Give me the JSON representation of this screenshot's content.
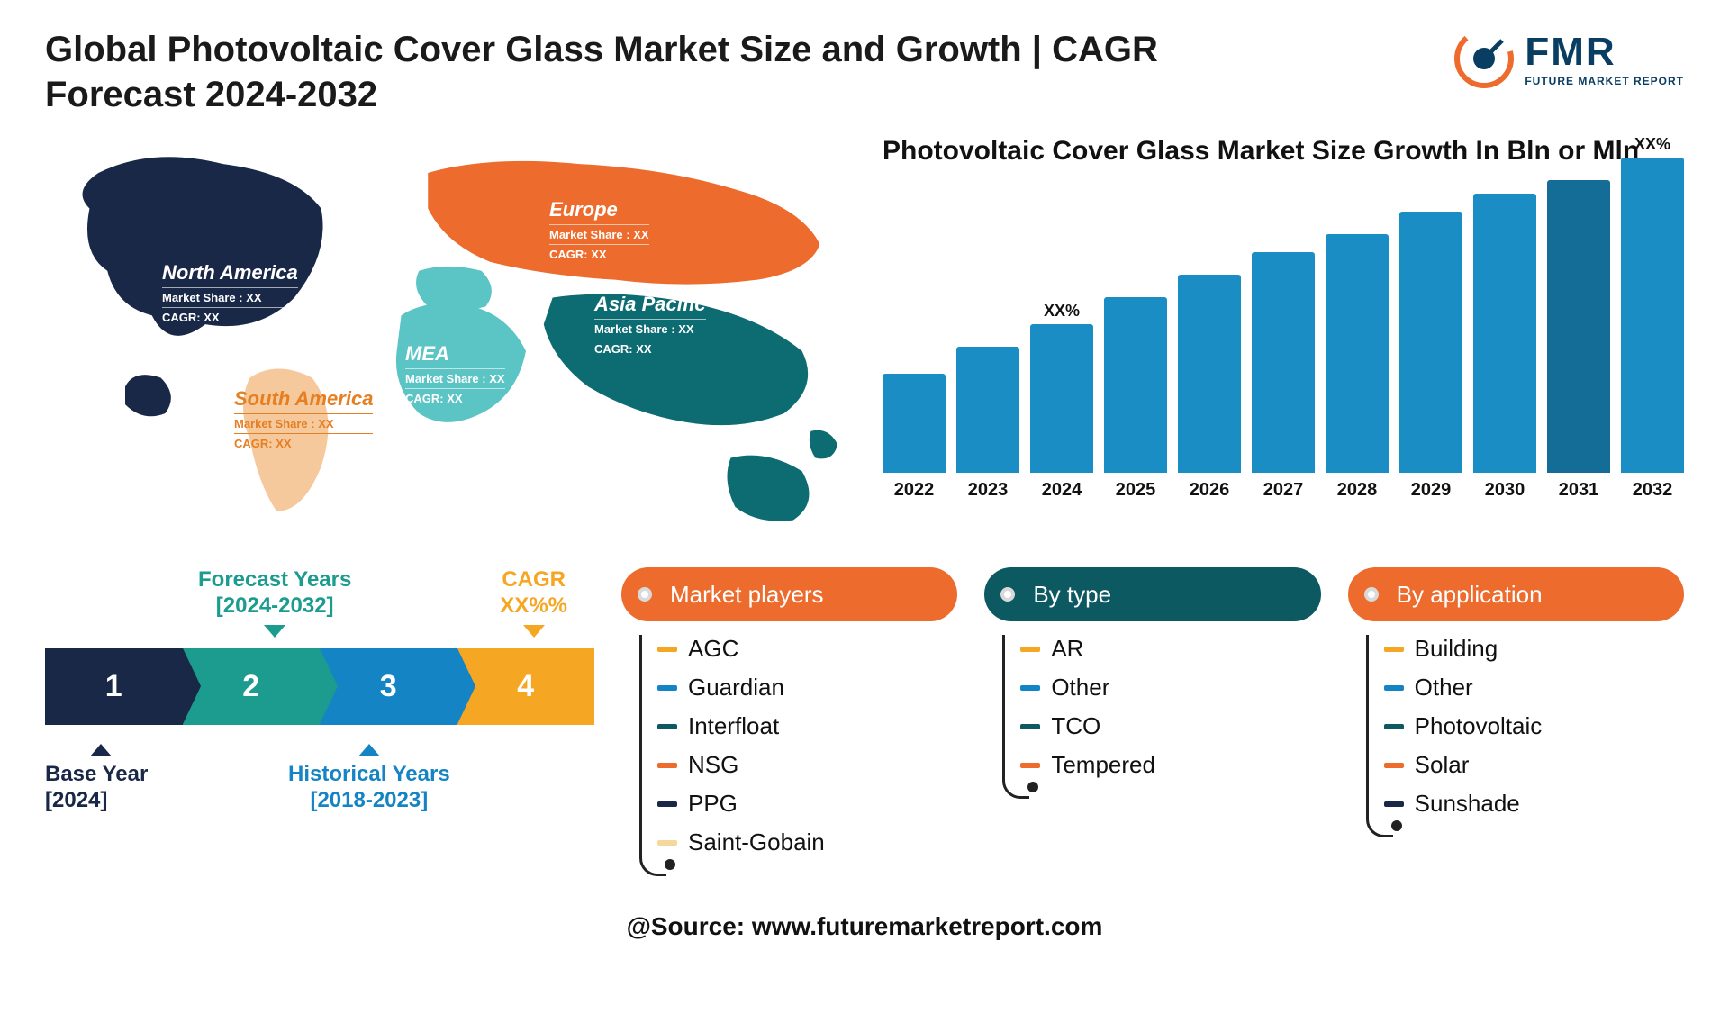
{
  "title": "Global Photovoltaic Cover Glass Market Size and Growth | CAGR Forecast 2024-2032",
  "logo": {
    "fmr": "FMR",
    "sub": "FUTURE MARKET REPORT"
  },
  "colors": {
    "navy": "#1a2848",
    "teal": "#1b9c8f",
    "cyan": "#5bc4c4",
    "blue": "#1584c4",
    "orange": "#ec6b2d",
    "amber": "#f5a623",
    "tealdark": "#0d5961",
    "bar": "#1a8dc4",
    "bardark": "#146d96",
    "text": "#111111"
  },
  "regions": {
    "na": {
      "name": "North America",
      "share": "Market Share : XX",
      "cagr": "CAGR: XX"
    },
    "sa": {
      "name": "South America",
      "share": "Market Share : XX",
      "cagr": "CAGR: XX"
    },
    "eu": {
      "name": "Europe",
      "share": "Market Share : XX",
      "cagr": "CAGR: XX"
    },
    "mea": {
      "name": "MEA",
      "share": "Market Share : XX",
      "cagr": "CAGR: XX"
    },
    "ap": {
      "name": "Asia Pacific",
      "share": "Market Share : XX",
      "cagr": "CAGR: XX"
    }
  },
  "chart": {
    "title": "Photovoltaic Cover Glass Market Size Growth In Bln or Mln",
    "years": [
      "2022",
      "2023",
      "2024",
      "2025",
      "2026",
      "2027",
      "2028",
      "2029",
      "2030",
      "2031",
      "2032"
    ],
    "heights": [
      110,
      140,
      165,
      195,
      220,
      245,
      265,
      290,
      310,
      325,
      350
    ],
    "bar_colors": [
      "#1a8dc4",
      "#1a8dc4",
      "#1a8dc4",
      "#1a8dc4",
      "#1a8dc4",
      "#1a8dc4",
      "#1a8dc4",
      "#1a8dc4",
      "#1a8dc4",
      "#146d96",
      "#1a8dc4"
    ],
    "pct1": {
      "label": "XX%",
      "index": 2
    },
    "pct2": {
      "label": "XX%",
      "index": 10
    }
  },
  "timeline": {
    "forecast": {
      "label": "Forecast Years",
      "period": "[2024-2032]",
      "color": "#1b9c8f"
    },
    "cagr": {
      "label": "CAGR",
      "value": "XX%%",
      "color": "#f5a623"
    },
    "base": {
      "label": "Base Year",
      "period": "[2024]",
      "color": "#1a2848"
    },
    "hist": {
      "label": "Historical Years",
      "period": "[2018-2023]",
      "color": "#1584c4"
    },
    "segs": [
      "1",
      "2",
      "3",
      "4"
    ]
  },
  "sections": {
    "players": {
      "title": "Market players",
      "pill_color": "#ec6b2d",
      "items": [
        {
          "c": "#f5a623",
          "t": "AGC"
        },
        {
          "c": "#1584c4",
          "t": "Guardian"
        },
        {
          "c": "#0d5961",
          "t": "Interfloat"
        },
        {
          "c": "#ec6b2d",
          "t": "NSG"
        },
        {
          "c": "#1a2848",
          "t": "PPG"
        },
        {
          "c": "#f5d89b",
          "t": "Saint-Gobain"
        }
      ]
    },
    "type": {
      "title": "By type",
      "pill_color": "#0d5961",
      "items": [
        {
          "c": "#f5a623",
          "t": "AR"
        },
        {
          "c": "#1584c4",
          "t": "Other"
        },
        {
          "c": "#0d5961",
          "t": "TCO"
        },
        {
          "c": "#ec6b2d",
          "t": "Tempered"
        }
      ]
    },
    "app": {
      "title": "By application",
      "pill_color": "#ec6b2d",
      "items": [
        {
          "c": "#f5a623",
          "t": "Building"
        },
        {
          "c": "#1584c4",
          "t": "Other"
        },
        {
          "c": "#0d5961",
          "t": "Photovoltaic"
        },
        {
          "c": "#ec6b2d",
          "t": "Solar"
        },
        {
          "c": "#1a2848",
          "t": "Sunshade"
        }
      ]
    }
  },
  "source": "@Source: www.futuremarketreport.com"
}
